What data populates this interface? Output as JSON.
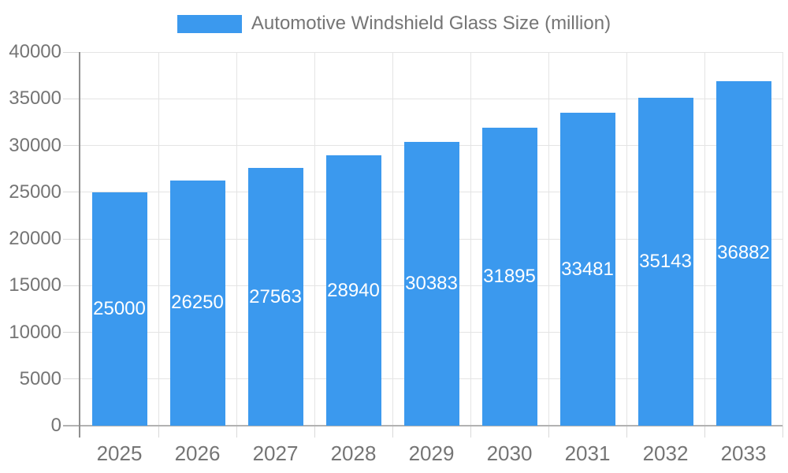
{
  "legend": {
    "label": "Automotive Windshield Glass Size (million)"
  },
  "colors": {
    "bar": "#3b99ee",
    "bar_label_text": "#ffffff",
    "axis_text": "#757575",
    "grid_line": "#e4e4e4",
    "tick_line": "#d9d9d9",
    "y_axis_line": "#8f8f8f",
    "x_axis_line": "#b2b2b2",
    "background": "#ffffff"
  },
  "chart_data": {
    "type": "bar",
    "title": "Automotive Windshield Glass Size (million)",
    "series": [
      {
        "name": "Automotive Windshield Glass Size (million)",
        "values": [
          25000,
          26250,
          27563,
          28940,
          30383,
          31895,
          33481,
          35143,
          36882
        ]
      }
    ],
    "categories": [
      "2025",
      "2026",
      "2027",
      "2028",
      "2029",
      "2030",
      "2031",
      "2032",
      "2033"
    ],
    "bar_value_labels": [
      "25000",
      "26250",
      "27563",
      "28940",
      "30383",
      "31895",
      "33481",
      "35143",
      "36882"
    ],
    "xlabel": "",
    "ylabel": "",
    "ylim": [
      0,
      40000
    ],
    "ytick_step": 5000,
    "ytick_labels": [
      "0",
      "5000",
      "10000",
      "15000",
      "20000",
      "25000",
      "30000",
      "35000",
      "40000"
    ],
    "grid": true,
    "grid_horizontal": true,
    "grid_vertical": true,
    "legend_position": "top-center",
    "value_labels_inside_bars": true
  }
}
